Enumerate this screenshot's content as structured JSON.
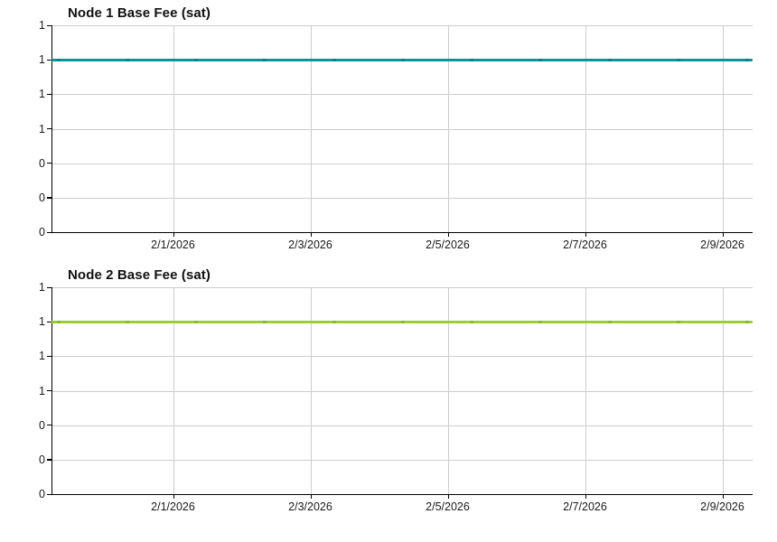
{
  "charts": [
    {
      "title": "Node 1 Base Fee (sat)",
      "line_color": "#0e939e",
      "marker_color": "#0b7f89",
      "y_tick_labels": [
        "1",
        "1",
        "1",
        "1",
        "0",
        "0",
        "0"
      ],
      "x_tick_labels": [
        "2/1/2026",
        "2/3/2026",
        "2/5/2026",
        "2/7/2026",
        "2/9/2026"
      ]
    },
    {
      "title": "Node 2 Base Fee (sat)",
      "line_color": "#9bce33",
      "marker_color": "#8cba2c",
      "y_tick_labels": [
        "1",
        "1",
        "1",
        "1",
        "0",
        "0",
        "0"
      ],
      "x_tick_labels": [
        "2/1/2026",
        "2/3/2026",
        "2/5/2026",
        "2/7/2026",
        "2/9/2026"
      ]
    }
  ],
  "chart_data": [
    {
      "type": "line",
      "title": "Node 1 Base Fee (sat)",
      "x": [
        "2/1/2026",
        "2/3/2026",
        "2/5/2026",
        "2/7/2026",
        "2/9/2026"
      ],
      "values": [
        1,
        1,
        1,
        1,
        1
      ],
      "series_note": "constant base fee of 1 sat across the entire visible date range",
      "xlabel": "",
      "ylabel": "",
      "y_axis": {
        "min": 0,
        "max": 1.2,
        "tick_step": 0.2,
        "displayed_tick_labels_top_to_bottom": [
          "1",
          "1",
          "1",
          "1",
          "0",
          "0",
          "0"
        ]
      },
      "grid": true,
      "legend": false,
      "line_color": "#0e939e"
    },
    {
      "type": "line",
      "title": "Node 2 Base Fee (sat)",
      "x": [
        "2/1/2026",
        "2/3/2026",
        "2/5/2026",
        "2/7/2026",
        "2/9/2026"
      ],
      "values": [
        1,
        1,
        1,
        1,
        1
      ],
      "series_note": "constant base fee of 1 sat across the entire visible date range",
      "xlabel": "",
      "ylabel": "",
      "y_axis": {
        "min": 0,
        "max": 1.2,
        "tick_step": 0.2,
        "displayed_tick_labels_top_to_bottom": [
          "1",
          "1",
          "1",
          "1",
          "0",
          "0",
          "0"
        ]
      },
      "grid": true,
      "legend": false,
      "line_color": "#9bce33"
    }
  ],
  "colors": {
    "grid": "#cccccc",
    "axis": "#000000",
    "text": "#1a1a1a",
    "background": "#ffffff"
  }
}
